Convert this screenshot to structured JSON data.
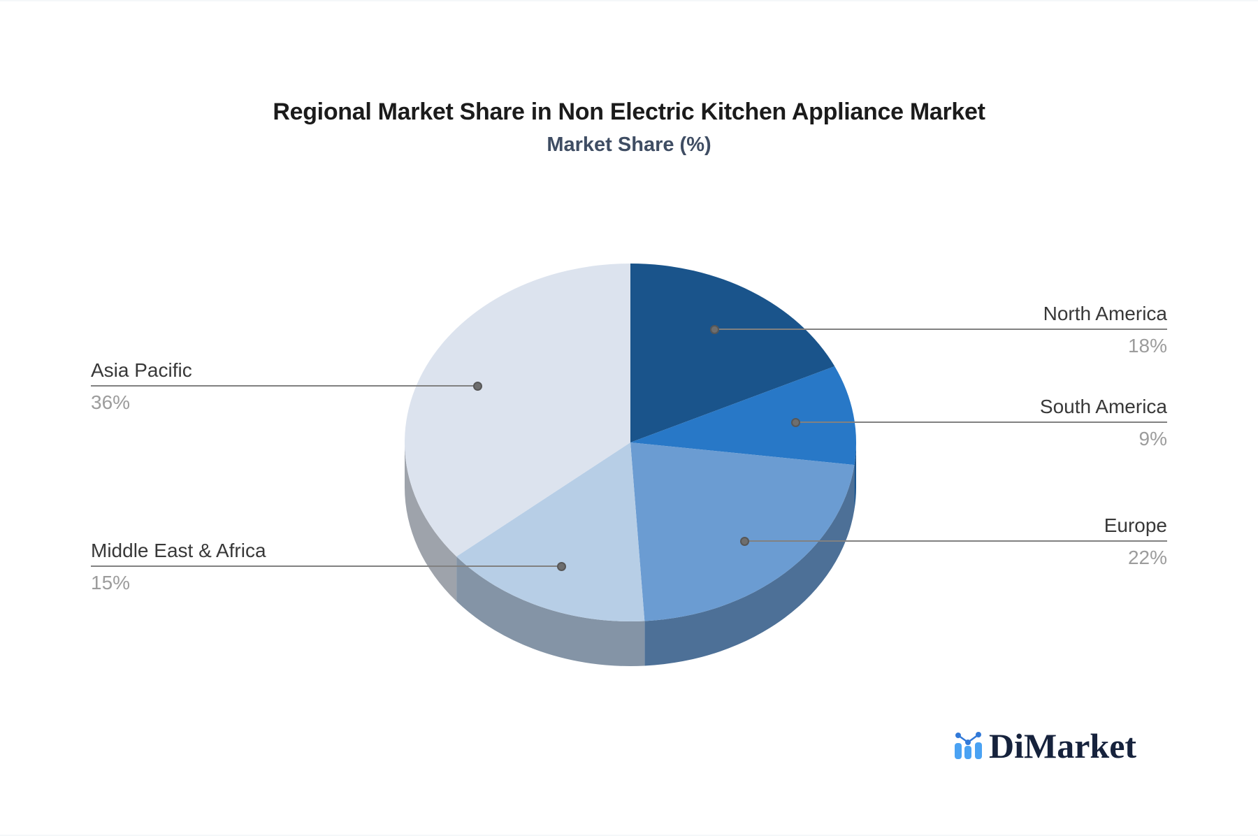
{
  "title": "Regional Market Share in Non Electric Kitchen Appliance Market",
  "subtitle": "Market Share (%)",
  "logo": {
    "text": "DiMarket",
    "icon": "bar-chart-trend-icon"
  },
  "colors": {
    "background": "#ffffff",
    "title": "#1b1b1b",
    "subtitle": "#3f4d63",
    "label_name": "#383838",
    "label_value": "#9c9c9c",
    "leader_line": "#818181",
    "leader_dot": "#6e6e6e",
    "logo_text": "#16223c",
    "logo_icon_bars": "#4aa2f3",
    "logo_icon_dots": "#3179d8"
  },
  "chart_data": {
    "type": "pie",
    "style": "3d",
    "title": "Regional Market Share in Non Electric Kitchen Appliance Market",
    "subtitle": "Market Share (%)",
    "unit": "%",
    "start_angle_deg": 0,
    "direction": "clockwise",
    "legend_position": "none",
    "slices": [
      {
        "label": "North America",
        "value": 18,
        "display": "18%",
        "color": "#1a548b",
        "side": "right"
      },
      {
        "label": "South America",
        "value": 9,
        "display": "9%",
        "color": "#2878c7",
        "side": "right"
      },
      {
        "label": "Europe",
        "value": 22,
        "display": "22%",
        "color": "#6b9cd2",
        "side": "right"
      },
      {
        "label": "Middle East & Africa",
        "value": 15,
        "display": "15%",
        "color": "#b7cee6",
        "side": "left"
      },
      {
        "label": "Asia Pacific",
        "value": 36,
        "display": "36%",
        "color": "#dce3ee",
        "side": "left"
      }
    ]
  }
}
